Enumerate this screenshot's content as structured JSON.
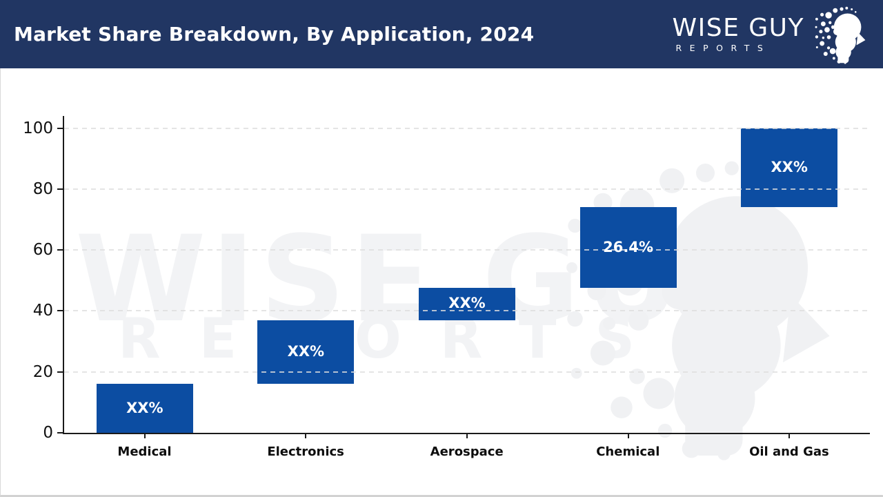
{
  "header": {
    "title": "Market Share Breakdown, By Application, 2024",
    "logo": {
      "line1": "WISE GUY",
      "line2": "REPORTS",
      "icon": "wiseguy-head-icon"
    }
  },
  "watermark": {
    "line1": "WISE GUY",
    "line2": "REPORTS",
    "icon": "watermark-head-icon"
  },
  "chart_data": {
    "type": "bar",
    "subtype": "floating-waterfall",
    "title": "Market Share Breakdown, By Application, 2024",
    "categories": [
      "Medical",
      "Electronics",
      "Aerospace",
      "Chemical",
      "Oil and Gas"
    ],
    "series": [
      {
        "name": "Market Share (%)",
        "segments": [
          {
            "category": "Medical",
            "start": 0,
            "end": 16,
            "label": "XX%"
          },
          {
            "category": "Electronics",
            "start": 16,
            "end": 37,
            "label": "XX%"
          },
          {
            "category": "Aerospace",
            "start": 37,
            "end": 47.6,
            "label": "XX%"
          },
          {
            "category": "Chemical",
            "start": 47.6,
            "end": 74,
            "label": "26.4%"
          },
          {
            "category": "Oil and Gas",
            "start": 74,
            "end": 100,
            "label": "XX%"
          }
        ]
      }
    ],
    "ylim": [
      0,
      104
    ],
    "yticks": [
      0,
      20,
      40,
      60,
      80,
      100
    ],
    "xlabel": "",
    "ylabel": "",
    "grid": "horizontal-dashed",
    "legend": "none",
    "bar_color": "#0C4DA2",
    "bar_label_color": "#ffffff",
    "header_bg_color": "#213663",
    "grid_color": "#dedede",
    "axis_color": "#1a1a1a"
  }
}
